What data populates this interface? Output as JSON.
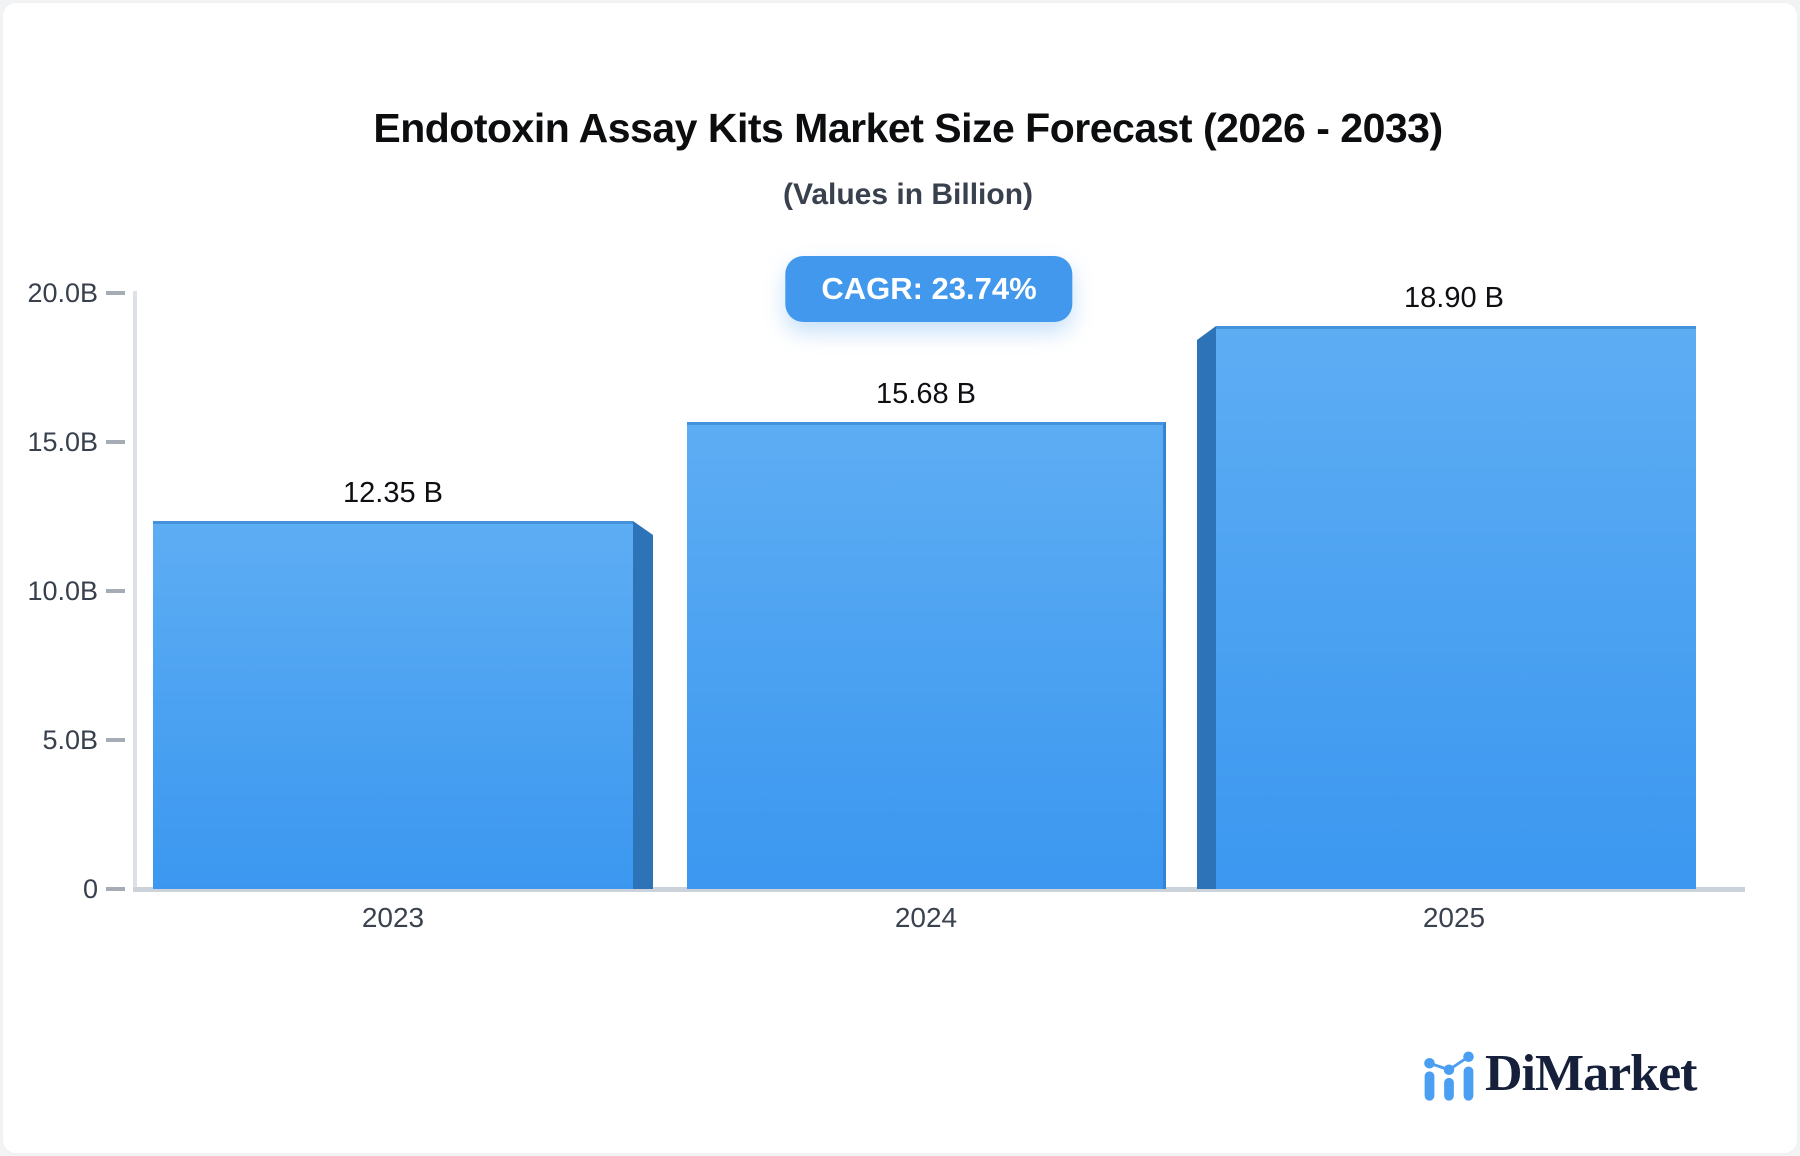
{
  "chart": {
    "title": "Endotoxin Assay Kits Market Size Forecast (2026 - 2033)",
    "subtitle": "(Values in Billion)",
    "cagr_label": "CAGR: 23.74%"
  },
  "chart_data": {
    "type": "bar",
    "title": "Endotoxin Assay Kits Market Size Forecast (2026 - 2033)",
    "subtitle": "(Values in Billion)",
    "annotation": "CAGR: 23.74%",
    "categories": [
      "2023",
      "2024",
      "2025"
    ],
    "values": [
      12.35,
      15.68,
      18.9
    ],
    "value_labels": [
      "12.35 B",
      "15.68 B",
      "18.90 B"
    ],
    "xlabel": "",
    "ylabel": "",
    "ylim": [
      0,
      20
    ],
    "yticks": [
      {
        "value": 0,
        "label": "0"
      },
      {
        "value": 5,
        "label": "5.0B"
      },
      {
        "value": 10,
        "label": "10.0B"
      },
      {
        "value": 15,
        "label": "15.0B"
      },
      {
        "value": 20,
        "label": "20.0B"
      }
    ],
    "grid": false,
    "legend": false,
    "bar_color_top": "#5dadf3",
    "bar_color_bottom": "#3b97f0",
    "bar_side_color": "#2c73b7"
  },
  "badge": {
    "bg": "#4198ec",
    "text_color": "#ffffff"
  },
  "logo": {
    "text": "DiMarket",
    "icon": "bar-line-chart-icon",
    "icon_color": "#4b9ff2",
    "text_color": "#16203a"
  }
}
